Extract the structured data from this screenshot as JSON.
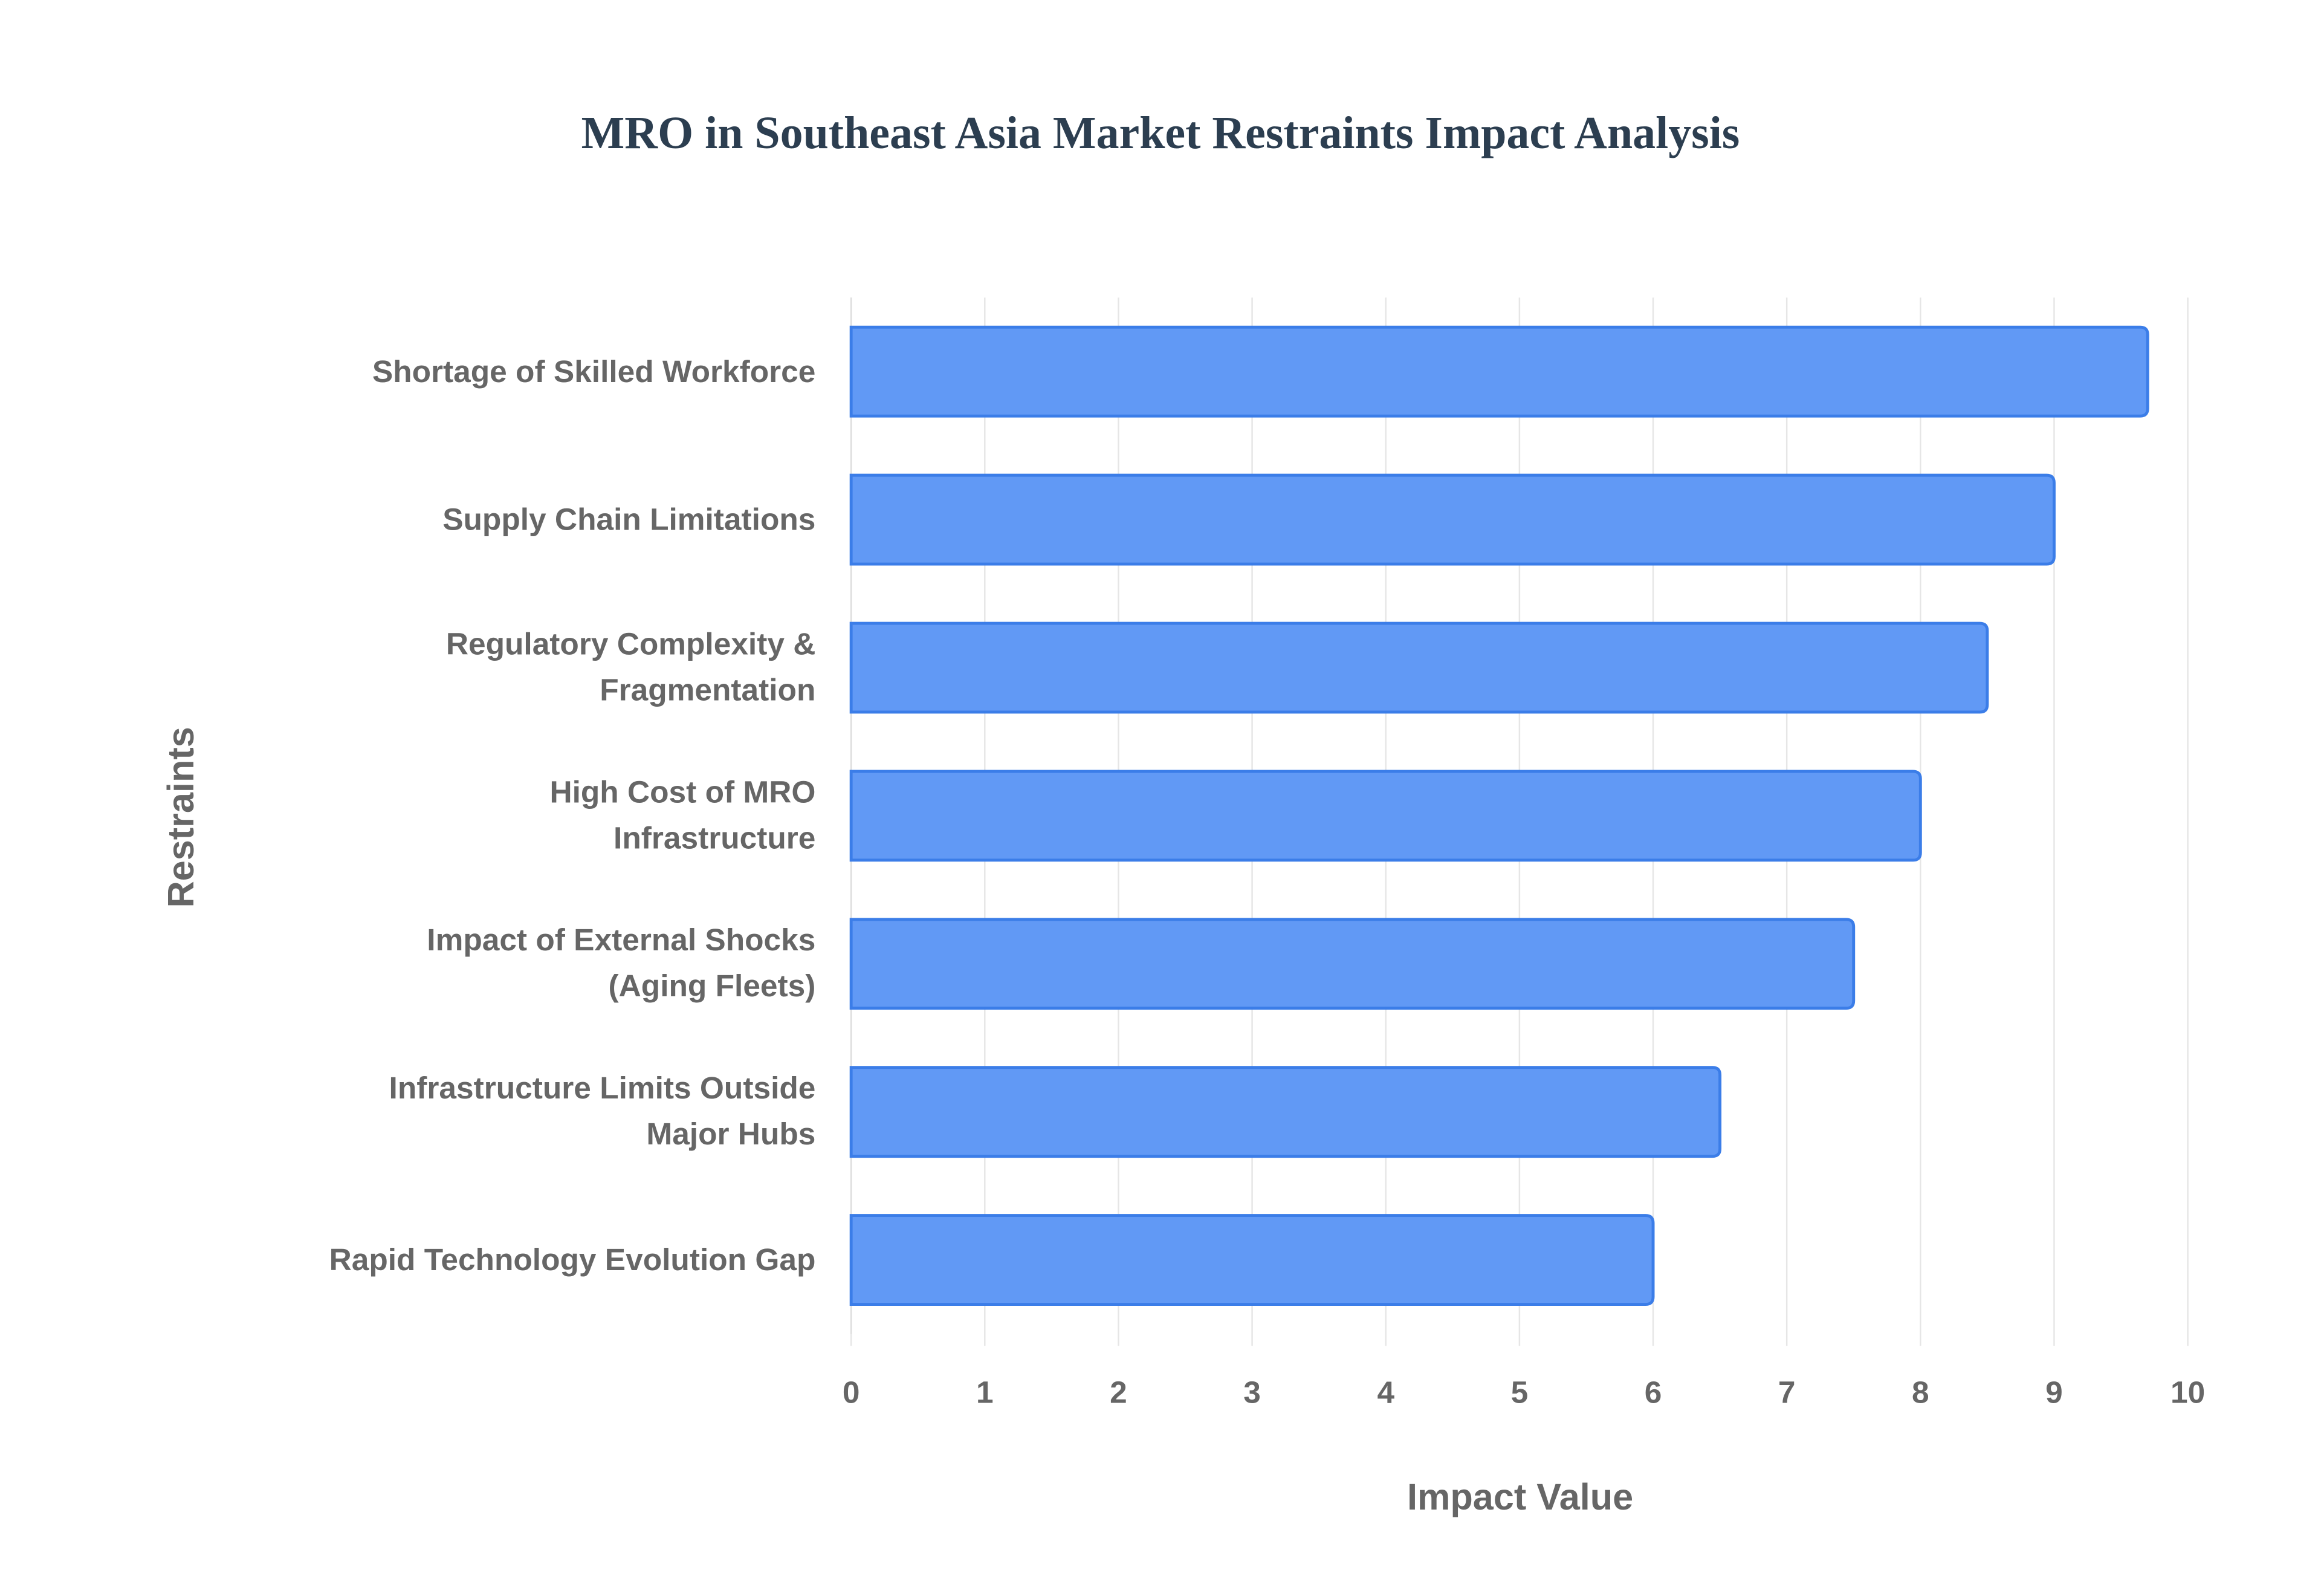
{
  "chart_data": {
    "type": "bar",
    "orientation": "horizontal",
    "title": "MRO in Southeast Asia Market Restraints Impact Analysis",
    "x_label": "Impact Value",
    "y_label": "Restraints",
    "categories": [
      "Shortage of Skilled Workforce",
      "Supply Chain Limitations",
      "Regulatory Complexity &\nFragmentation",
      "High Cost of MRO\nInfrastructure",
      "Impact of External Shocks\n(Aging Fleets)",
      "Infrastructure Limits Outside\nMajor Hubs",
      "Rapid Technology Evolution Gap"
    ],
    "values": [
      9.7,
      9.0,
      8.5,
      8.0,
      7.5,
      6.5,
      6.0
    ],
    "color": "#6199f5",
    "edge_color": "#3b7de8",
    "xlim": [
      0,
      10
    ],
    "xticks": [
      0,
      1,
      2,
      3,
      4,
      5,
      6,
      7,
      8,
      9,
      10
    ],
    "grid": true
  }
}
